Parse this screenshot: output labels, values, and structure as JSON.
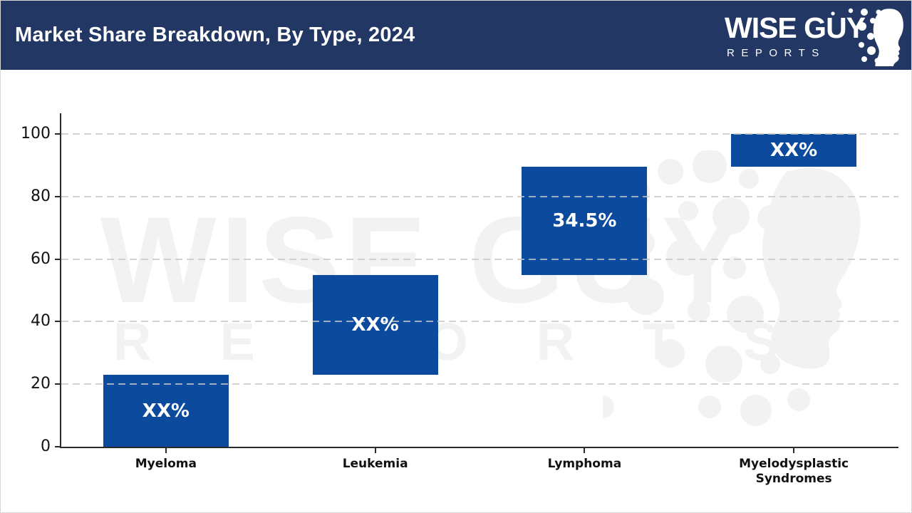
{
  "header": {
    "title": "Market Share Breakdown, By Type, 2024",
    "background_color": "#223764",
    "logo": {
      "name": "WISE GUY",
      "tagline": "R E P O R T S"
    }
  },
  "watermark": {
    "line1": "WISE GUY",
    "line2": "REPORTS"
  },
  "chart_data": {
    "type": "bar",
    "variant": "floating-waterfall-segments",
    "title": "Market Share Breakdown, By Type, 2024",
    "categories": [
      "Myeloma",
      "Leukemia",
      "Lymphoma",
      "Myelodysplastic Syndromes"
    ],
    "segments": [
      {
        "category": "Myeloma",
        "start": 0,
        "end": 23,
        "label": "XX%"
      },
      {
        "category": "Leukemia",
        "start": 23,
        "end": 55,
        "label": "XX%"
      },
      {
        "category": "Lymphoma",
        "start": 55,
        "end": 89.5,
        "label": "34.5%"
      },
      {
        "category": "Myelodysplastic Syndromes",
        "start": 89.5,
        "end": 100,
        "label": "XX%"
      }
    ],
    "xlabel": "",
    "ylabel": "",
    "ylim": [
      0,
      100
    ],
    "yticks": [
      0,
      20,
      40,
      60,
      80,
      100
    ],
    "grid": "horizontal-dashed",
    "legend": false,
    "bar_color": "#0c4a9e",
    "bar_label_color": "#ffffff",
    "axis_color": "#2a2a2a",
    "grid_color": "#c6c6c6"
  }
}
